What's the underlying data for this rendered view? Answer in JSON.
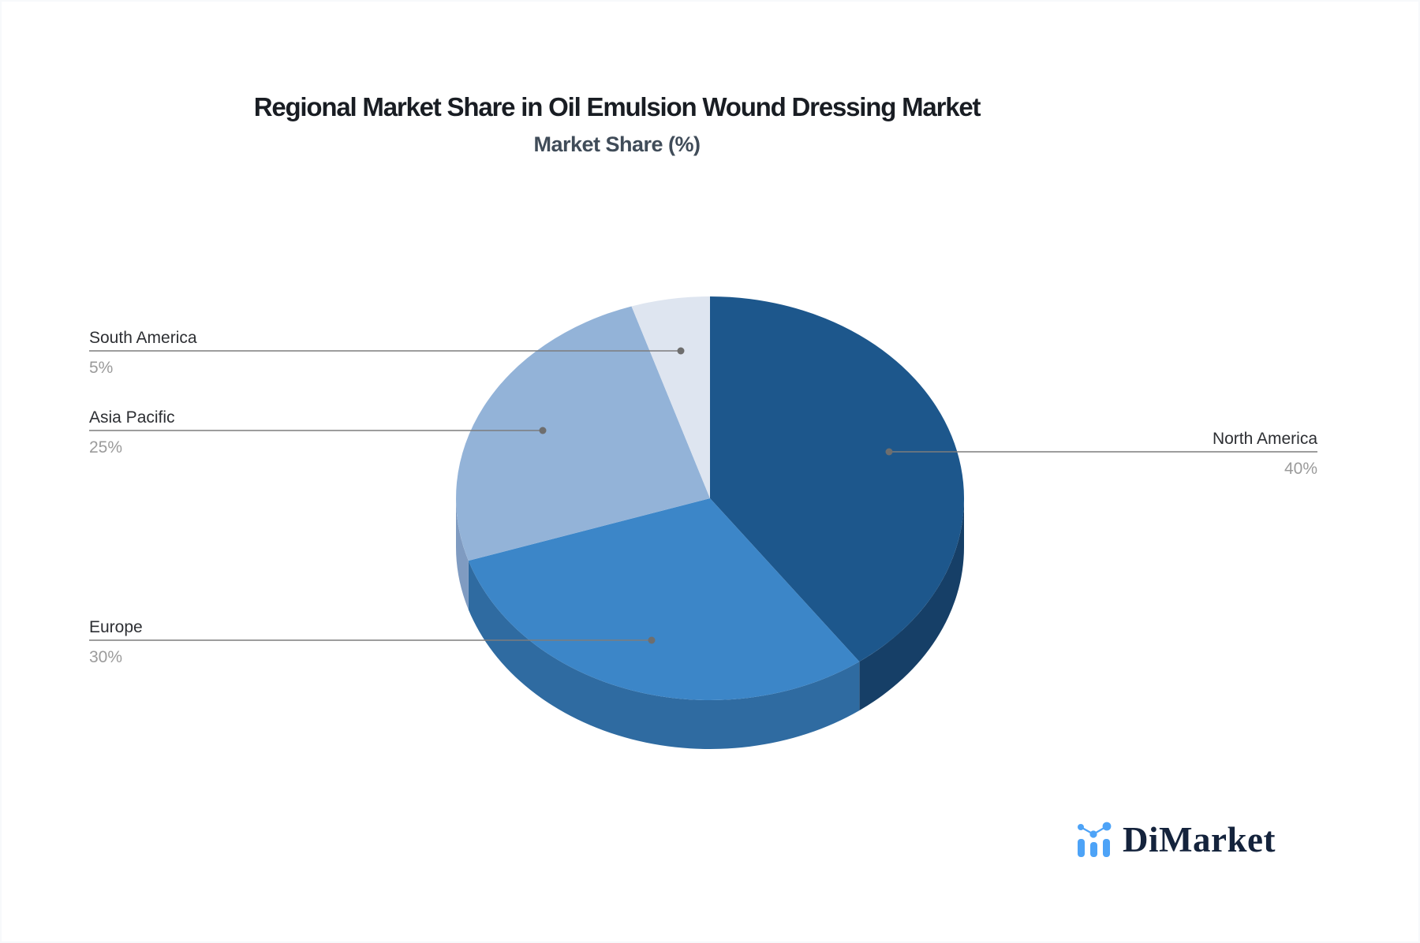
{
  "header": {
    "title": "Regional Market Share in Oil Emulsion Wound Dressing Market",
    "subtitle": "Market Share (%)"
  },
  "chart_data": {
    "type": "pie",
    "style": "3d",
    "title": "Regional Market Share in Oil Emulsion Wound Dressing Market",
    "subtitle": "Market Share (%)",
    "unit": "%",
    "start_angle_deg": -90,
    "direction": "clockwise",
    "categories": [
      "North America",
      "Europe",
      "Asia Pacific",
      "South America"
    ],
    "values": [
      40,
      30,
      25,
      5
    ],
    "slices": [
      {
        "label": "North America",
        "value": 40,
        "pct_label": "40%",
        "color": "#1d578c",
        "rim_color": "#163f67"
      },
      {
        "label": "Europe",
        "value": 30,
        "pct_label": "30%",
        "color": "#3c86c8",
        "rim_color": "#2f6ba1"
      },
      {
        "label": "Asia Pacific",
        "value": 25,
        "pct_label": "25%",
        "color": "#93b3d8",
        "rim_color": "#7f9bc1"
      },
      {
        "label": "South America",
        "value": 5,
        "pct_label": "5%",
        "color": "#dee5f0",
        "rim_color": "#c3cdde"
      }
    ],
    "callout_line_color": "#7d7d7d",
    "callout_dot_color": "#6e6e6e",
    "label_text_color": "#2d2f33",
    "value_text_color": "#9b9b9b",
    "legend_position": "none",
    "grid": false
  },
  "branding": {
    "logo_text": "DiMarket",
    "logo_text_color": "#14233c",
    "logo_icon": "bar-chart-with-trend-dots-icon",
    "logo_icon_color": "#4da3f7"
  }
}
